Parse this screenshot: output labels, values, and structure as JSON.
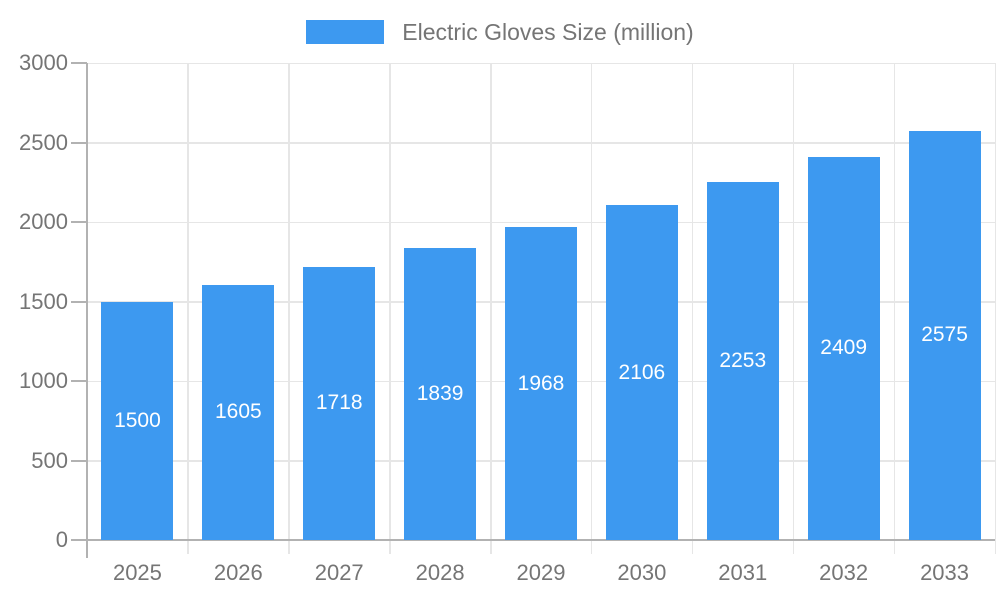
{
  "legend": {
    "label": "Electric Gloves Size (million)"
  },
  "chart_data": {
    "type": "bar",
    "title": "Electric Gloves Size (million)",
    "categories": [
      "2025",
      "2026",
      "2027",
      "2028",
      "2029",
      "2030",
      "2031",
      "2032",
      "2033"
    ],
    "series": [
      {
        "name": "Electric Gloves Size (million)",
        "values": [
          1500,
          1605,
          1718,
          1839,
          1968,
          2106,
          2253,
          2409,
          2575
        ]
      }
    ],
    "values": [
      1500,
      1605,
      1718,
      1839,
      1968,
      2106,
      2253,
      2409,
      2575
    ],
    "value_labels": [
      "1500",
      "1605",
      "1718",
      "1839",
      "1968",
      "2106",
      "2253",
      "2409",
      "2575"
    ],
    "xlabel": "",
    "ylabel": "",
    "ylim": [
      0,
      3000
    ],
    "yticks": [
      0,
      500,
      1000,
      1500,
      2000,
      2500,
      3000
    ],
    "grid": true,
    "legend_position": "top-center",
    "value_label_position": "inside-center"
  },
  "colors": {
    "bar": "#3d99f0",
    "grid": "#e6e6e6",
    "axis": "#b2b2b2",
    "axis_text": "#757575",
    "legend_text": "#757575",
    "value_text": "#ffffff",
    "background": "#ffffff"
  }
}
